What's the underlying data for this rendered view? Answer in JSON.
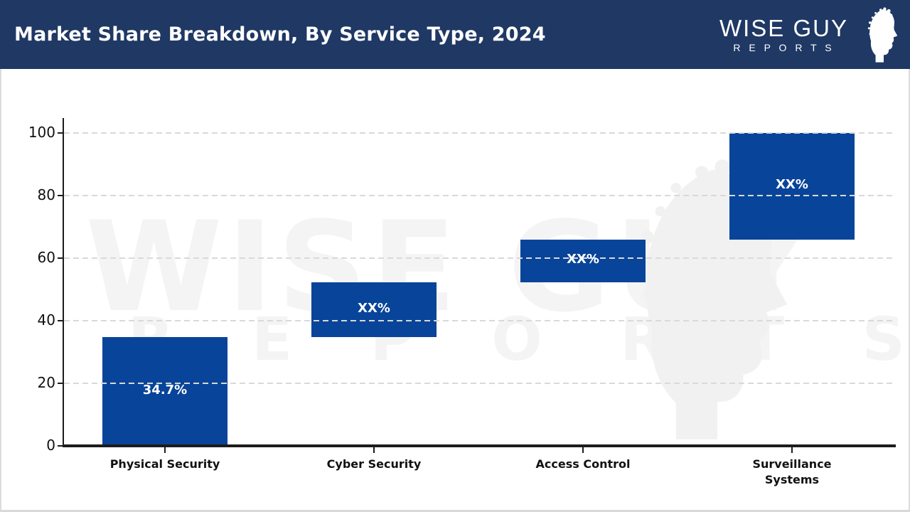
{
  "header": {
    "title": "Market Share Breakdown, By Service Type, 2024",
    "bg_color": "#1f3864",
    "logo": {
      "line1": "WISE GUY",
      "line2": "R E P O R T S"
    }
  },
  "watermark": {
    "line1": "WISE GUY",
    "line2": "R E P O R T S"
  },
  "chart_data": {
    "type": "bar",
    "variant": "waterfall",
    "title": "Market Share Breakdown, By Service Type, 2024",
    "xlabel": "",
    "ylabel": "",
    "ylim": [
      0,
      105
    ],
    "yticks": [
      0,
      20,
      40,
      60,
      80,
      100
    ],
    "grid": "horizontal-dashed",
    "gridline_color": "#d9d9d9",
    "bar_color": "#084499",
    "bar_label_color": "#ffffff",
    "categories": [
      "Physical Security",
      "Cyber Security",
      "Access Control",
      "Surveillance Systems"
    ],
    "bars": [
      {
        "category": "Physical Security",
        "start": 0,
        "end": 34.7,
        "label": "34.7%"
      },
      {
        "category": "Cyber Security",
        "start": 34.7,
        "end": 52.3,
        "label": "XX%"
      },
      {
        "category": "Access Control",
        "start": 52.3,
        "end": 66.0,
        "label": "XX%"
      },
      {
        "category": "Surveillance Systems",
        "start": 66.0,
        "end": 100,
        "label": "XX%"
      }
    ]
  }
}
